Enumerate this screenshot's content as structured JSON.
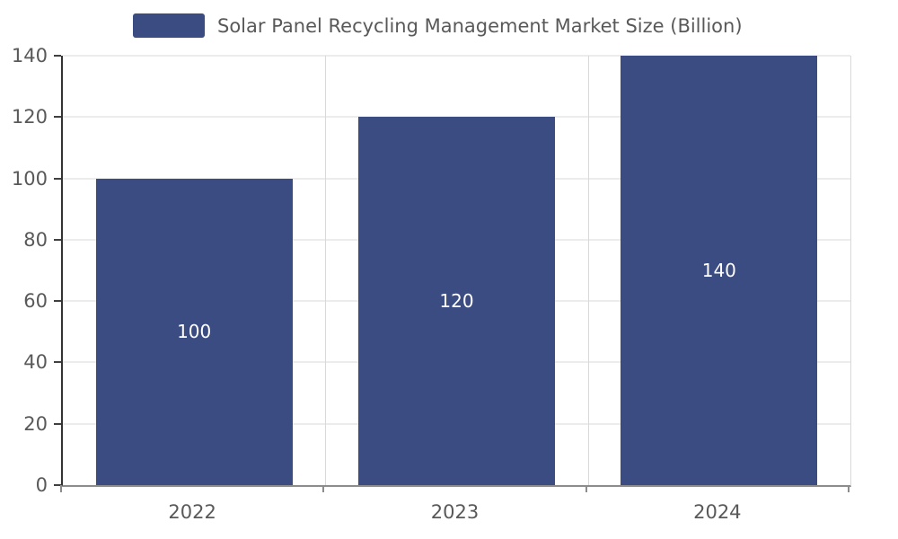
{
  "chart_data": {
    "type": "bar",
    "title": "Solar Panel Recycling Management Market Size (Billion)",
    "categories": [
      "2022",
      "2023",
      "2024"
    ],
    "values": [
      100,
      120,
      140
    ],
    "xlabel": "",
    "ylabel": "",
    "ylim": [
      0,
      140
    ],
    "ytick_step": 20,
    "yticks": [
      0,
      20,
      40,
      60,
      80,
      100,
      120,
      140
    ],
    "grid": true,
    "legend_position": "top-center",
    "colors": {
      "bar": "#3b4c83",
      "value_label": "#ffffff",
      "tick_label": "#595959",
      "grid_line": "#d9d9d9",
      "axis_line": "#333333"
    }
  }
}
